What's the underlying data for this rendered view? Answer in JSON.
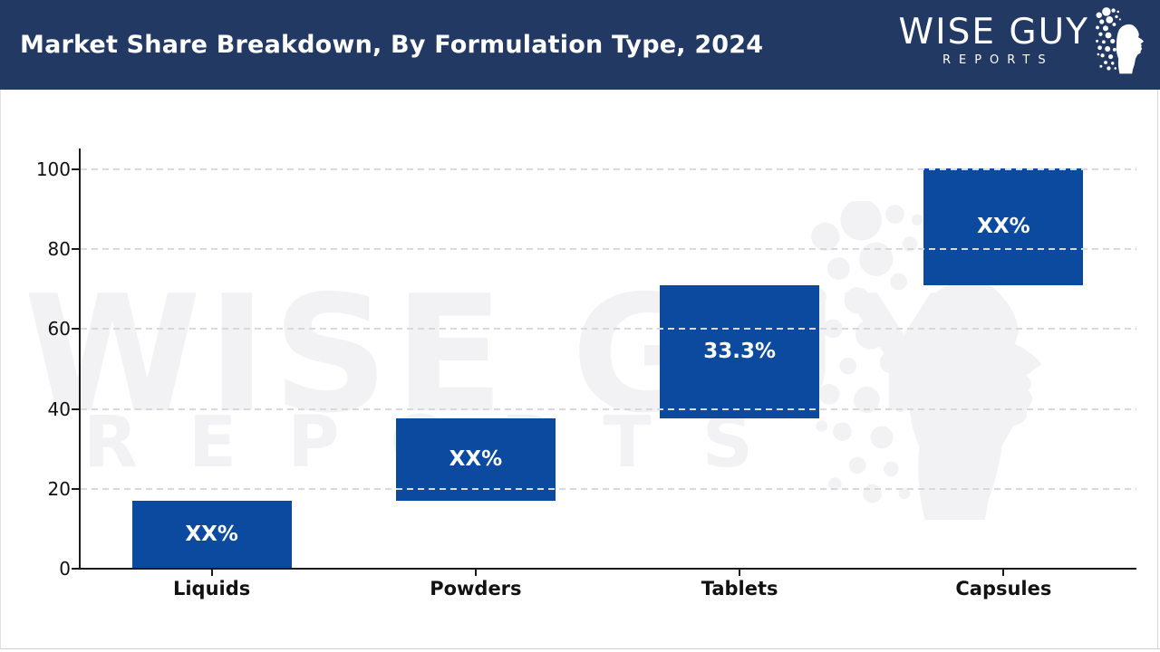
{
  "header": {
    "title": "Market Share Breakdown, By Formulation Type, 2024",
    "logo": {
      "name": "WISE GUY",
      "sub": "REPORTS"
    }
  },
  "watermark": {
    "name": "WISE GUY",
    "sub": "REPORTS"
  },
  "chart_data": {
    "type": "bar",
    "subtype": "waterfall",
    "title": "Market Share Breakdown, By Formulation Type, 2024",
    "categories": [
      "Liquids",
      "Powders",
      "Tablets",
      "Capsules"
    ],
    "segments": [
      {
        "category": "Liquids",
        "start": 0,
        "end": 16.7,
        "label": "XX%"
      },
      {
        "category": "Powders",
        "start": 16.7,
        "end": 37.5,
        "label": "XX%"
      },
      {
        "category": "Tablets",
        "start": 37.5,
        "end": 70.8,
        "label": "33.3%"
      },
      {
        "category": "Capsules",
        "start": 70.8,
        "end": 100,
        "label": "XX%"
      }
    ],
    "yticks": [
      0,
      20,
      40,
      60,
      80,
      100
    ],
    "ylim": [
      0,
      105
    ],
    "xlabel": "",
    "ylabel": "",
    "grid": "dashed-horizontal",
    "legend": "none"
  },
  "colors": {
    "header_bg": "#223963",
    "header_text": "#ffffff",
    "bar_fill": "#0b4a9e",
    "bar_label": "#ffffff",
    "axis": "#1a1a1a",
    "gridline": "#d9d9d9",
    "tick_label": "#111111",
    "watermark": "#f2f2f4"
  }
}
